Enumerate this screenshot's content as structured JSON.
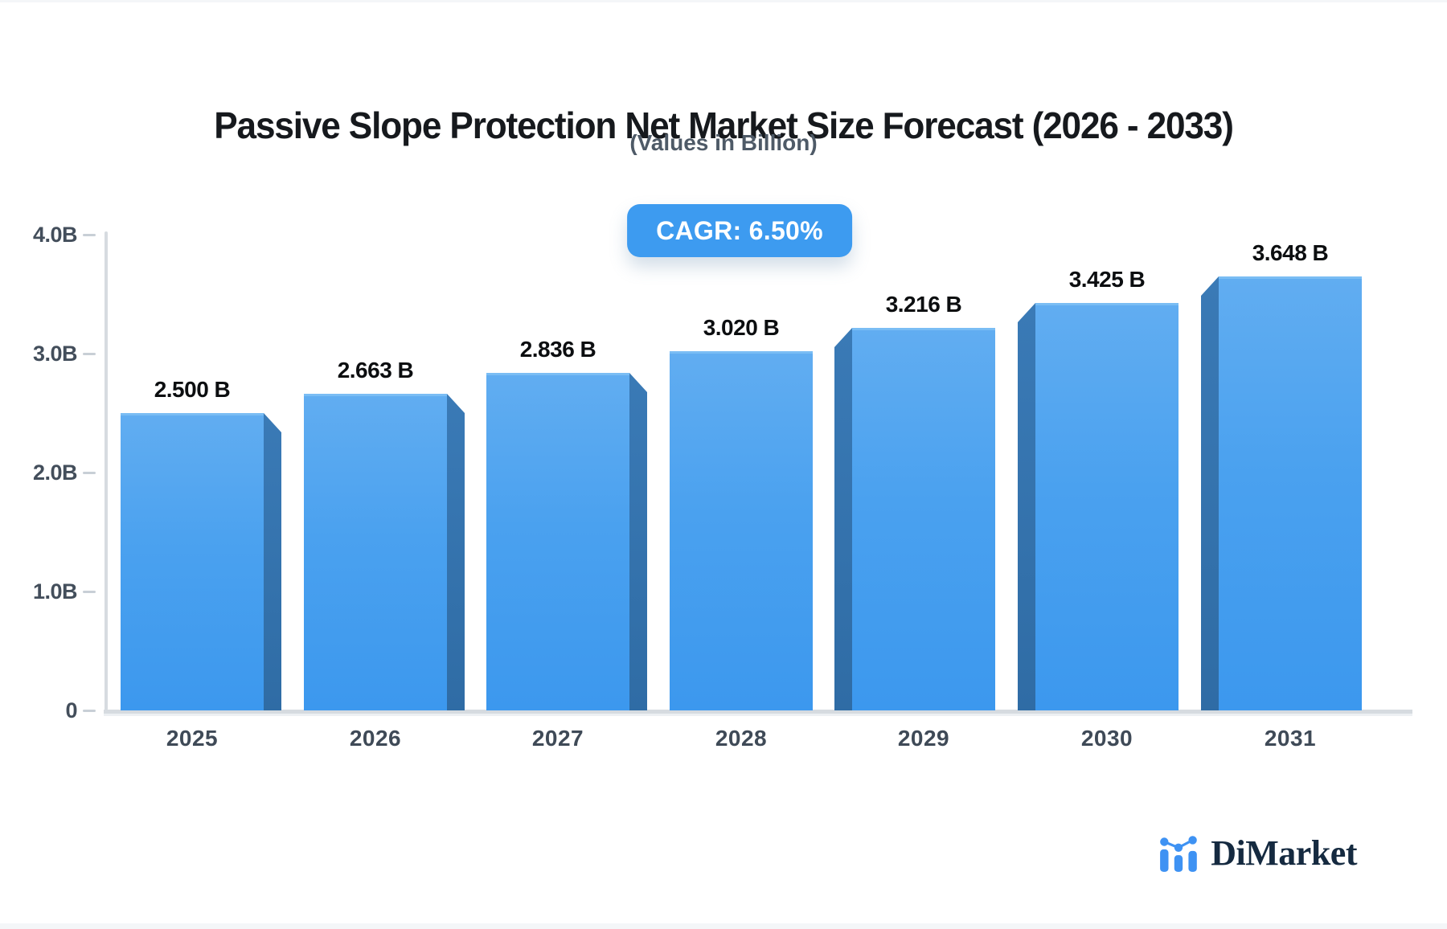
{
  "badge": {
    "label": "CAGR: 6.50%"
  },
  "branding": {
    "name": "DiMarket",
    "icon": "bar-line-chart-icon"
  },
  "colors": {
    "accent": "#3D9BF0",
    "badge_text": "#FFFFFF",
    "bar_top": "#61ADF1",
    "bar_bottom": "#3C98EE",
    "bar_side": "#2F6CA5",
    "axis": "#D6DBE0",
    "tick": "#C8CFD6",
    "axis_label": "#434E5B",
    "text_dark": "#16191D",
    "text_muted": "#4E5A67",
    "logo_navy": "#152A40"
  },
  "chart_data": {
    "type": "bar",
    "title": "Passive Slope Protection Net Market Size Forecast (2026 - 2033)",
    "subtitle": "(Values in Billion)",
    "categories": [
      "2025",
      "2026",
      "2027",
      "2028",
      "2029",
      "2030",
      "2031"
    ],
    "values": [
      2.5,
      2.663,
      2.836,
      3.02,
      3.216,
      3.425,
      3.648
    ],
    "bar_labels": [
      "2.500 B",
      "2.663 B",
      "2.836 B",
      "3.020 B",
      "3.216 B",
      "3.425 B",
      "3.648 B"
    ],
    "xlabel": "",
    "ylabel": "",
    "ylim": [
      0,
      4
    ],
    "yticks": [
      {
        "value": 4,
        "label": "4.0B"
      },
      {
        "value": 3,
        "label": "3.0B"
      },
      {
        "value": 2,
        "label": "2.0B"
      },
      {
        "value": 1,
        "label": "1.0B"
      },
      {
        "value": 0,
        "label": "0"
      }
    ],
    "grid": false,
    "legend": false
  }
}
